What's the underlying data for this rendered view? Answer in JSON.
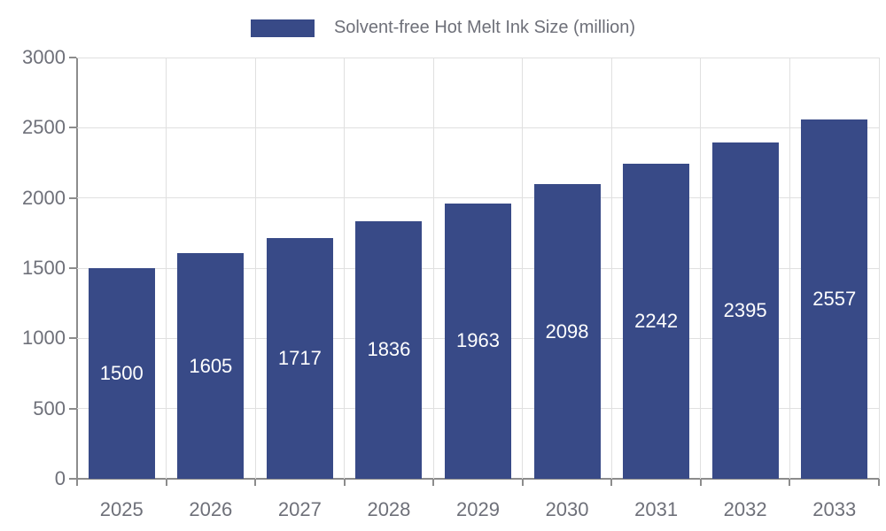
{
  "legend": {
    "label": "Solvent-free Hot Melt Ink Size (million)"
  },
  "colors": {
    "bar": "#384A87",
    "grid": "#E0E0E0",
    "axis": "#8C8C8C",
    "tick_label": "#6E7079",
    "legend_text": "#6E7079",
    "value_label": "#FFFFFF",
    "background": "#FFFFFF"
  },
  "chart_data": {
    "type": "bar",
    "title": "",
    "xlabel": "",
    "ylabel": "",
    "series_name": "Solvent-free Hot Melt Ink Size (million)",
    "categories": [
      "2025",
      "2026",
      "2027",
      "2028",
      "2029",
      "2030",
      "2031",
      "2032",
      "2033"
    ],
    "values": [
      1500,
      1605,
      1717,
      1836,
      1963,
      2098,
      2242,
      2395,
      2557
    ],
    "ylim": [
      0,
      3000
    ],
    "yticks": [
      0,
      500,
      1000,
      1500,
      2000,
      2500,
      3000
    ],
    "grid": true,
    "legend_position": "top",
    "bar_labels_inside": true
  }
}
